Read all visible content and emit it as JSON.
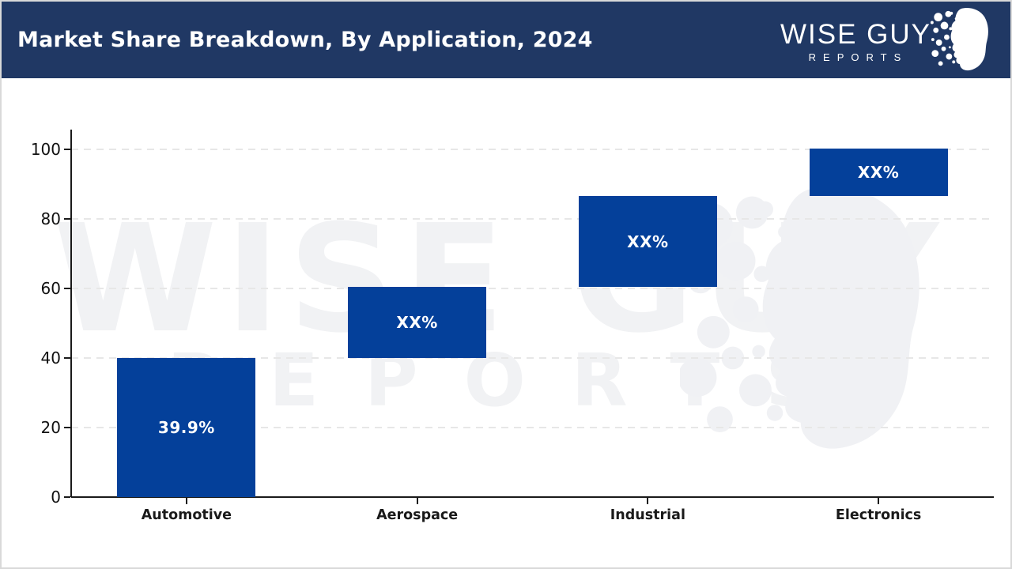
{
  "header": {
    "title": "Market Share Breakdown, By Application, 2024",
    "bg_color": "#203864",
    "logo": {
      "line1": "WISE GUY",
      "line2": "REPORTS"
    }
  },
  "watermark": {
    "line1": "WISE GUY",
    "line2": "REPORTS"
  },
  "chart_data": {
    "type": "bar",
    "subtype": "waterfall",
    "title": "Market Share Breakdown, By Application, 2024",
    "categories": [
      "Automotive",
      "Aerospace",
      "Industrial",
      "Electronics"
    ],
    "series": [
      {
        "name": "Market share (%)",
        "segments": [
          {
            "category": "Automotive",
            "start": 0,
            "end": 39.9,
            "label": "39.9%"
          },
          {
            "category": "Aerospace",
            "start": 39.9,
            "end": 60.4,
            "label": "XX%"
          },
          {
            "category": "Industrial",
            "start": 60.4,
            "end": 86.6,
            "label": "XX%"
          },
          {
            "category": "Electronics",
            "start": 86.6,
            "end": 100.3,
            "label": "XX%"
          }
        ]
      }
    ],
    "xlabel": "",
    "ylabel": "",
    "ylim": [
      0,
      105.7
    ],
    "yticks": [
      0,
      20,
      40,
      60,
      80,
      100
    ],
    "grid": "dashed-horizontal",
    "legend": "none",
    "bar_color": "#04409a",
    "bar_label_color": "#ffffff",
    "axis_color": "#1a1a1a",
    "gridline_color": "#e7e7e7",
    "watermark_color": "#f1f2f4"
  }
}
